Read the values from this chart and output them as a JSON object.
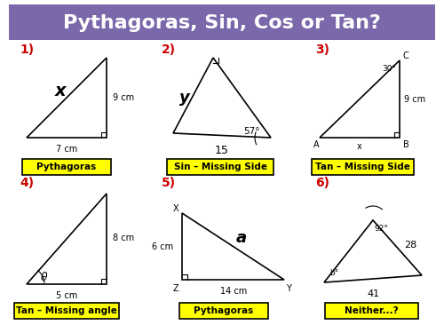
{
  "title": "Pythagoras, Sin, Cos or Tan?",
  "title_bg": "#7B68AA",
  "title_color": "white",
  "bg_color": "white",
  "label_color": "#CC0000",
  "box_color": "#FFFF00",
  "box_edge": "black",
  "problems": [
    {
      "num": "1)",
      "label": "Pythagoras"
    },
    {
      "num": "2)",
      "label": "Sin – Missing Side"
    },
    {
      "num": "3)",
      "label": "Tan – Missing Side"
    },
    {
      "num": "4)",
      "label": "Tan – Missing angle"
    },
    {
      "num": "5)",
      "label": "Pythagoras"
    },
    {
      "num": "6)",
      "label": "Neither...?"
    }
  ]
}
